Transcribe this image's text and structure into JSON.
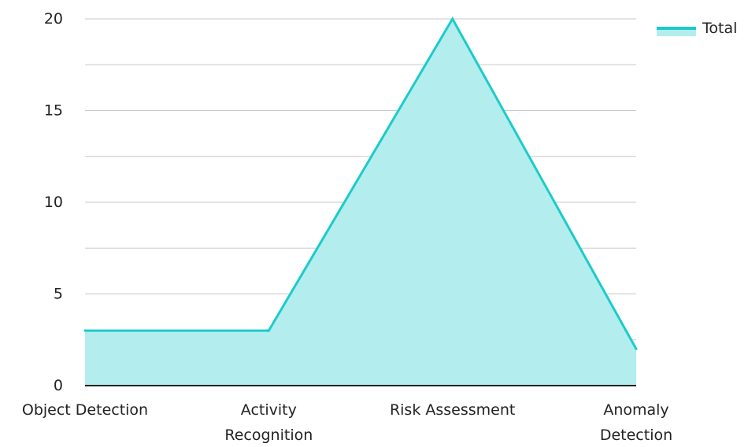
{
  "chart_data": {
    "type": "area",
    "title": "",
    "xlabel": "",
    "ylabel": "",
    "categories": [
      [
        "Object Detection"
      ],
      [
        "Activity",
        "Recognition"
      ],
      [
        "Risk Assessment"
      ],
      [
        "Anomaly",
        "Detection"
      ]
    ],
    "series": [
      {
        "name": "Total",
        "values": [
          3,
          3,
          20,
          2
        ],
        "line_color": "#1ccbcb",
        "fill_color": "#b3eded"
      }
    ],
    "ylim": [
      0,
      20
    ],
    "yticks": [
      0,
      5,
      10,
      15,
      20
    ],
    "grid": true,
    "legend_position": "top-right",
    "colors": {
      "gridline": "#c8c8c8",
      "axis": "#222222",
      "text": "#222222"
    }
  }
}
